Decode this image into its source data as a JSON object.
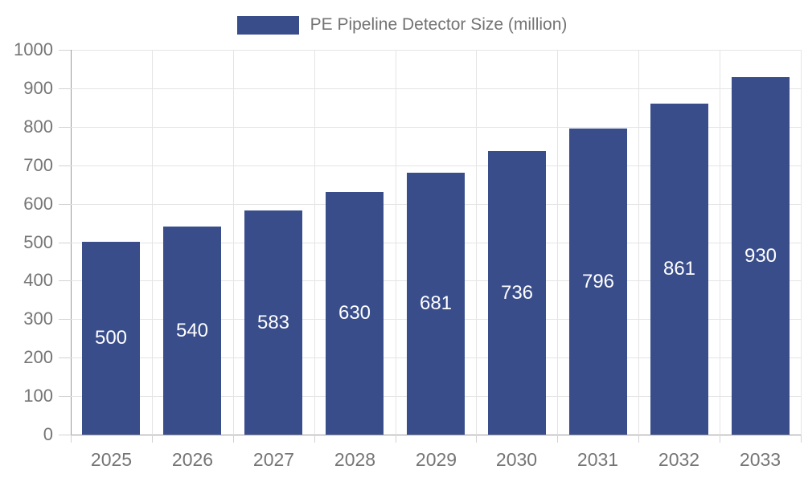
{
  "chart_data": {
    "type": "bar",
    "title": "PE Pipeline Detector Size (million)",
    "categories": [
      "2025",
      "2026",
      "2027",
      "2028",
      "2029",
      "2030",
      "2031",
      "2032",
      "2033"
    ],
    "values": [
      500,
      540,
      583,
      630,
      681,
      736,
      796,
      861,
      930
    ],
    "xlabel": "",
    "ylabel": "",
    "ylim": [
      0,
      1000
    ],
    "ytick_step": 100,
    "grid": true,
    "legend_position": "top-center",
    "bar_color": "#394D8B",
    "bar_label_color": "#ffffff",
    "axis_text_color": "#757575",
    "grid_color": "#E4E4E4",
    "axis_line_color": "#999999"
  }
}
